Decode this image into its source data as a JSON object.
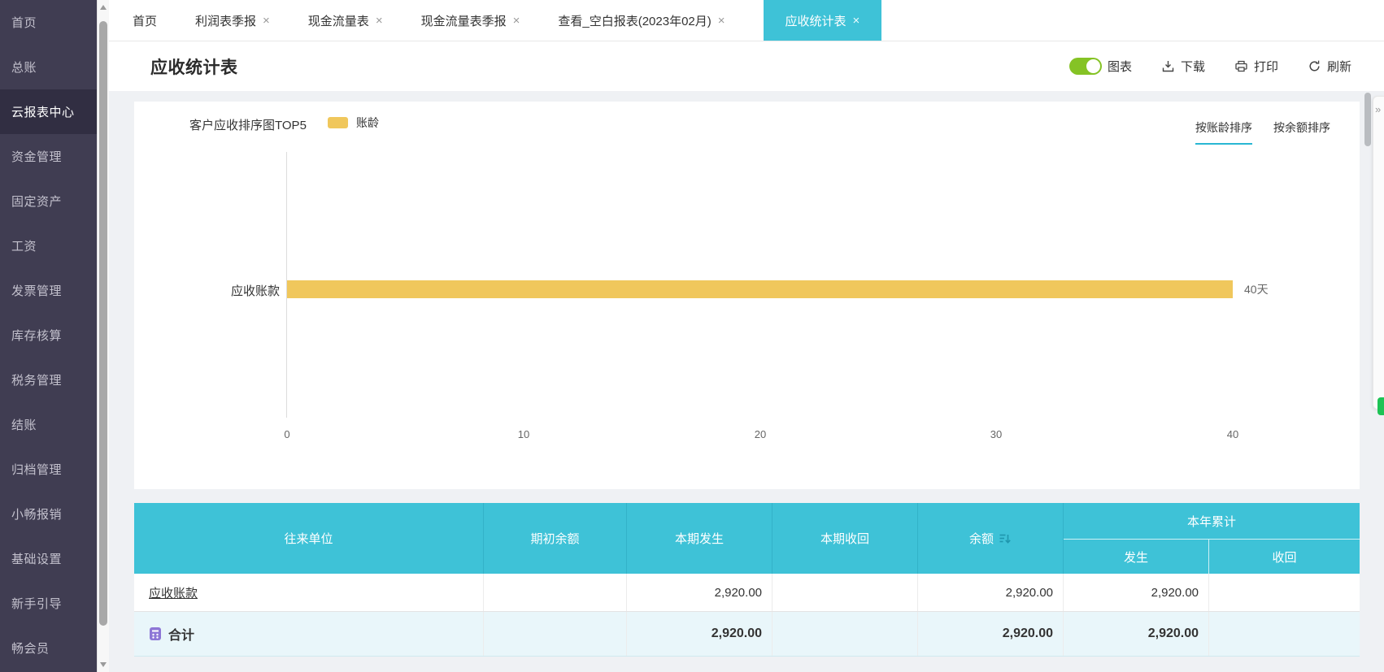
{
  "ui": {
    "close_glyph": "×",
    "expand_glyph": "»"
  },
  "sidebar": {
    "items": [
      {
        "label": "首页",
        "active": false
      },
      {
        "label": "总账",
        "active": false
      },
      {
        "label": "云报表中心",
        "active": true
      },
      {
        "label": "资金管理",
        "active": false
      },
      {
        "label": "固定资产",
        "active": false
      },
      {
        "label": "工资",
        "active": false
      },
      {
        "label": "发票管理",
        "active": false
      },
      {
        "label": "库存核算",
        "active": false
      },
      {
        "label": "税务管理",
        "active": false
      },
      {
        "label": "结账",
        "active": false
      },
      {
        "label": "归档管理",
        "active": false
      },
      {
        "label": "小畅报销",
        "active": false
      },
      {
        "label": "基础设置",
        "active": false
      },
      {
        "label": "新手引导",
        "active": false
      },
      {
        "label": "畅会员",
        "active": false
      }
    ]
  },
  "tabs": [
    {
      "label": "首页",
      "closable": false,
      "active": false
    },
    {
      "label": "利润表季报",
      "closable": true,
      "active": false
    },
    {
      "label": "现金流量表",
      "closable": true,
      "active": false
    },
    {
      "label": "现金流量表季报",
      "closable": true,
      "active": false
    },
    {
      "label": "查看_空白报表(2023年02月)",
      "closable": true,
      "active": false
    },
    {
      "label": "应收统计表",
      "closable": true,
      "active": true
    }
  ],
  "toolbar": {
    "title": "应收统计表",
    "chart_toggle_label": "图表",
    "chart_toggle_on": true,
    "download_label": "下载",
    "print_label": "打印",
    "refresh_label": "刷新"
  },
  "chart": {
    "sort_tabs": [
      {
        "label": "按账龄排序",
        "active": true
      },
      {
        "label": "按余额排序",
        "active": false
      }
    ]
  },
  "chart_data": {
    "type": "bar",
    "orientation": "horizontal",
    "title": "客户应收排序图TOP5",
    "legend": [
      "账龄"
    ],
    "legend_position": "top",
    "categories": [
      "应收账款"
    ],
    "series": [
      {
        "name": "账龄",
        "values": [
          40
        ],
        "unit": "天"
      }
    ],
    "value_labels": [
      "40天"
    ],
    "xlim": [
      0,
      40
    ],
    "xticks": [
      0,
      10,
      20,
      30,
      40
    ],
    "grid": false,
    "bar_color": "#f0c75c"
  },
  "table": {
    "columns": [
      "往来单位",
      "期初余额",
      "本期发生",
      "本期收回",
      "余额"
    ],
    "group": {
      "label": "本年累计",
      "children": [
        "发生",
        "收回"
      ]
    },
    "rows": [
      [
        "应收账款",
        "",
        "2,920.00",
        "",
        "2,920.00",
        "2,920.00",
        ""
      ]
    ],
    "total_row": [
      "合计",
      "",
      "2,920.00",
      "",
      "2,920.00",
      "2,920.00",
      ""
    ]
  },
  "colors": {
    "accent_cyan": "#3ec2d7",
    "bar_yellow": "#f0c75c",
    "toggle_green": "#85c325",
    "sidebar_bg": "#403d52",
    "sidebar_active_bg": "#312e42",
    "total_row_bg": "#e9f6fa",
    "total_icon_purple": "#8d76d6"
  }
}
